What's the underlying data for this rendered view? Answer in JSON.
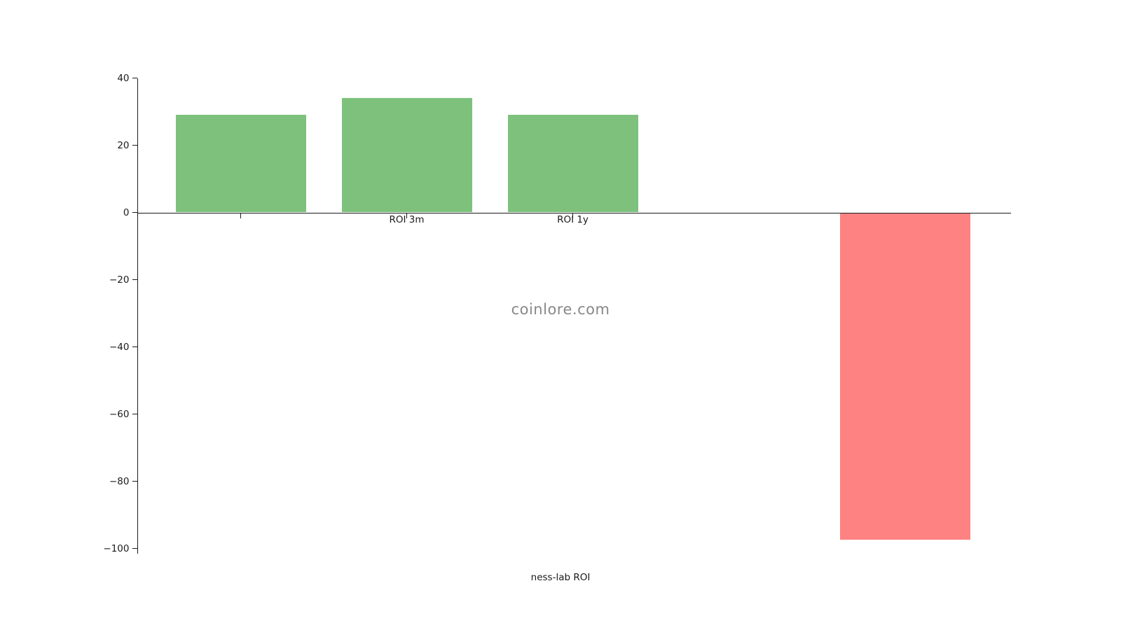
{
  "watermark": {
    "text": "coinlore.com",
    "color": "#888888"
  },
  "chart_data": {
    "type": "bar",
    "title": "",
    "xlabel": "ness-lab ROI",
    "ylabel": "",
    "grid": false,
    "legend": null,
    "ylim": [
      -101,
      40
    ],
    "positive_color": "#7dc17d",
    "negative_color": "#ff8282",
    "categories": [
      "",
      "ROI 3m",
      "ROI 1y",
      "",
      ""
    ],
    "values": [
      29,
      34,
      29,
      null,
      -97
    ],
    "bars": [
      {
        "label": "",
        "value": 29,
        "color": "#7dc17d",
        "tick": true
      },
      {
        "label": "ROI 3m",
        "value": 34,
        "color": "#7dc17d",
        "tick": true
      },
      {
        "label": "ROI 1y",
        "value": 29,
        "color": "#7dc17d",
        "tick": true
      },
      {
        "label": "",
        "value": null,
        "color": null,
        "tick": false
      },
      {
        "label": "",
        "value": -97,
        "color": "#ff8282",
        "tick": false
      }
    ],
    "yticks": [
      {
        "value": 40,
        "label": "40"
      },
      {
        "value": 20,
        "label": "20"
      },
      {
        "value": 0,
        "label": "0"
      },
      {
        "value": -20,
        "label": "−20"
      },
      {
        "value": -40,
        "label": "−40"
      },
      {
        "value": -60,
        "label": "−60"
      },
      {
        "value": -80,
        "label": "−80"
      },
      {
        "value": -100,
        "label": "−100"
      }
    ]
  }
}
